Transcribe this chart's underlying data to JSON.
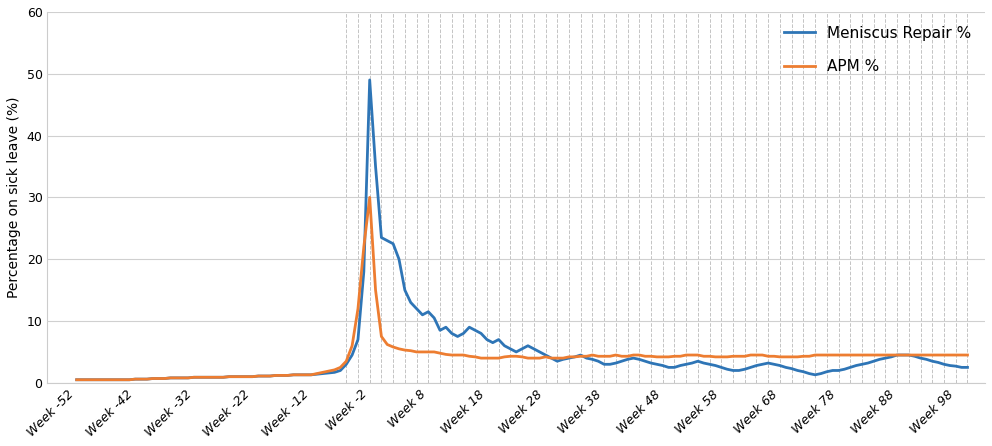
{
  "ylabel": "Percentage on sick leave (%)",
  "ylim": [
    0,
    60
  ],
  "yticks": [
    0,
    10,
    20,
    30,
    40,
    50,
    60
  ],
  "line1_label": "Meniscus Repair %",
  "line2_label": "APM %",
  "line1_color": "#2E75B6",
  "line2_color": "#ED7D31",
  "xtick_labels": [
    "Week -52",
    "Week -42",
    "Week -32",
    "Week -22",
    "Week -12",
    "Week -2",
    "Week 8",
    "Week 18",
    "Week 28",
    "Week 38",
    "Week 48",
    "Week 58",
    "Week 68",
    "Week 78",
    "Week 88",
    "Week 98"
  ],
  "xtick_positions": [
    -52,
    -42,
    -32,
    -22,
    -12,
    -2,
    8,
    18,
    28,
    38,
    48,
    58,
    68,
    78,
    88,
    98
  ],
  "dashed_vline_positions": [
    -6,
    -4,
    -2,
    0,
    2,
    4,
    6,
    8,
    10,
    12,
    14,
    16,
    18,
    20,
    22,
    24,
    26,
    28,
    30,
    32,
    34,
    36,
    38,
    40,
    42,
    44,
    46,
    48,
    50,
    52,
    54,
    56,
    58,
    60,
    62,
    64,
    66,
    68,
    70,
    72,
    74,
    76,
    78,
    80,
    82,
    84,
    86,
    88,
    90,
    92,
    94,
    96,
    98,
    100
  ],
  "meniscus_x": [
    -52,
    -51,
    -50,
    -49,
    -48,
    -47,
    -46,
    -45,
    -44,
    -43,
    -42,
    -41,
    -40,
    -39,
    -38,
    -37,
    -36,
    -35,
    -34,
    -33,
    -32,
    -31,
    -30,
    -29,
    -28,
    -27,
    -26,
    -25,
    -24,
    -23,
    -22,
    -21,
    -20,
    -19,
    -18,
    -17,
    -16,
    -15,
    -14,
    -13,
    -12,
    -11,
    -10,
    -9,
    -8,
    -7,
    -6,
    -5,
    -4,
    -3,
    -2,
    -1,
    0,
    1,
    2,
    3,
    4,
    5,
    6,
    7,
    8,
    9,
    10,
    11,
    12,
    13,
    14,
    15,
    16,
    17,
    18,
    19,
    20,
    21,
    22,
    23,
    24,
    25,
    26,
    27,
    28,
    29,
    30,
    31,
    32,
    33,
    34,
    35,
    36,
    37,
    38,
    39,
    40,
    41,
    42,
    43,
    44,
    45,
    46,
    47,
    48,
    49,
    50,
    51,
    52,
    53,
    54,
    55,
    56,
    57,
    58,
    59,
    60,
    61,
    62,
    63,
    64,
    65,
    66,
    67,
    68,
    69,
    70,
    71,
    72,
    73,
    74,
    75,
    76,
    77,
    78,
    79,
    80,
    81,
    82,
    83,
    84,
    85,
    86,
    87,
    88,
    89,
    90,
    91,
    92,
    93,
    94,
    95,
    96,
    97,
    98,
    99,
    100
  ],
  "meniscus_y": [
    0.5,
    0.5,
    0.5,
    0.5,
    0.5,
    0.5,
    0.5,
    0.5,
    0.5,
    0.5,
    0.6,
    0.6,
    0.6,
    0.7,
    0.7,
    0.7,
    0.8,
    0.8,
    0.8,
    0.8,
    0.9,
    0.9,
    0.9,
    0.9,
    0.9,
    0.9,
    1.0,
    1.0,
    1.0,
    1.0,
    1.0,
    1.1,
    1.1,
    1.1,
    1.2,
    1.2,
    1.2,
    1.3,
    1.3,
    1.3,
    1.3,
    1.4,
    1.5,
    1.6,
    1.7,
    2.0,
    3.0,
    4.5,
    7.0,
    18.0,
    49.0,
    35.0,
    23.5,
    23.0,
    22.5,
    20.0,
    15.0,
    13.0,
    12.0,
    11.0,
    11.5,
    10.5,
    8.5,
    9.0,
    8.0,
    7.5,
    8.0,
    9.0,
    8.5,
    8.0,
    7.0,
    6.5,
    7.0,
    6.0,
    5.5,
    5.0,
    5.5,
    6.0,
    5.5,
    5.0,
    4.5,
    4.0,
    3.5,
    3.8,
    4.0,
    4.2,
    4.5,
    4.0,
    3.8,
    3.5,
    3.0,
    3.0,
    3.2,
    3.5,
    3.8,
    4.0,
    3.8,
    3.5,
    3.2,
    3.0,
    2.8,
    2.5,
    2.5,
    2.8,
    3.0,
    3.2,
    3.5,
    3.2,
    3.0,
    2.8,
    2.5,
    2.2,
    2.0,
    2.0,
    2.2,
    2.5,
    2.8,
    3.0,
    3.2,
    3.0,
    2.8,
    2.5,
    2.3,
    2.0,
    1.8,
    1.5,
    1.3,
    1.5,
    1.8,
    2.0,
    2.0,
    2.2,
    2.5,
    2.8,
    3.0,
    3.2,
    3.5,
    3.8,
    4.0,
    4.2,
    4.5,
    4.5,
    4.5,
    4.3,
    4.0,
    3.8,
    3.5,
    3.3,
    3.0,
    2.8,
    2.7,
    2.5,
    2.5
  ],
  "apm_x": [
    -52,
    -51,
    -50,
    -49,
    -48,
    -47,
    -46,
    -45,
    -44,
    -43,
    -42,
    -41,
    -40,
    -39,
    -38,
    -37,
    -36,
    -35,
    -34,
    -33,
    -32,
    -31,
    -30,
    -29,
    -28,
    -27,
    -26,
    -25,
    -24,
    -23,
    -22,
    -21,
    -20,
    -19,
    -18,
    -17,
    -16,
    -15,
    -14,
    -13,
    -12,
    -11,
    -10,
    -9,
    -8,
    -7,
    -6,
    -5,
    -4,
    -3,
    -2,
    -1,
    0,
    1,
    2,
    3,
    4,
    5,
    6,
    7,
    8,
    9,
    10,
    11,
    12,
    13,
    14,
    15,
    16,
    17,
    18,
    19,
    20,
    21,
    22,
    23,
    24,
    25,
    26,
    27,
    28,
    29,
    30,
    31,
    32,
    33,
    34,
    35,
    36,
    37,
    38,
    39,
    40,
    41,
    42,
    43,
    44,
    45,
    46,
    47,
    48,
    49,
    50,
    51,
    52,
    53,
    54,
    55,
    56,
    57,
    58,
    59,
    60,
    61,
    62,
    63,
    64,
    65,
    66,
    67,
    68,
    69,
    70,
    71,
    72,
    73,
    74,
    75,
    76,
    77,
    78,
    79,
    80,
    81,
    82,
    83,
    84,
    85,
    86,
    87,
    88,
    89,
    90,
    91,
    92,
    93,
    94,
    95,
    96,
    97,
    98,
    99,
    100
  ],
  "apm_y": [
    0.5,
    0.5,
    0.5,
    0.5,
    0.5,
    0.5,
    0.5,
    0.5,
    0.5,
    0.5,
    0.6,
    0.6,
    0.6,
    0.7,
    0.7,
    0.7,
    0.8,
    0.8,
    0.8,
    0.8,
    0.9,
    0.9,
    0.9,
    0.9,
    0.9,
    0.9,
    1.0,
    1.0,
    1.0,
    1.0,
    1.0,
    1.1,
    1.1,
    1.1,
    1.2,
    1.2,
    1.2,
    1.3,
    1.3,
    1.3,
    1.3,
    1.5,
    1.7,
    1.9,
    2.1,
    2.5,
    3.5,
    6.0,
    12.0,
    22.0,
    30.0,
    15.0,
    7.5,
    6.2,
    5.8,
    5.5,
    5.3,
    5.2,
    5.0,
    5.0,
    5.0,
    5.0,
    4.8,
    4.6,
    4.5,
    4.5,
    4.5,
    4.3,
    4.2,
    4.0,
    4.0,
    4.0,
    4.0,
    4.2,
    4.3,
    4.3,
    4.2,
    4.0,
    4.0,
    4.0,
    4.2,
    4.0,
    4.0,
    4.0,
    4.2,
    4.2,
    4.3,
    4.3,
    4.5,
    4.3,
    4.3,
    4.3,
    4.5,
    4.3,
    4.3,
    4.5,
    4.5,
    4.3,
    4.3,
    4.2,
    4.2,
    4.2,
    4.3,
    4.3,
    4.5,
    4.5,
    4.5,
    4.3,
    4.3,
    4.2,
    4.2,
    4.2,
    4.3,
    4.3,
    4.3,
    4.5,
    4.5,
    4.5,
    4.3,
    4.3,
    4.2,
    4.2,
    4.2,
    4.2,
    4.3,
    4.3,
    4.5,
    4.5,
    4.5,
    4.5,
    4.5,
    4.5,
    4.5,
    4.5,
    4.5,
    4.5,
    4.5,
    4.5,
    4.5,
    4.5,
    4.5,
    4.5,
    4.5,
    4.5,
    4.5,
    4.5,
    4.5,
    4.5,
    4.5,
    4.5,
    4.5,
    4.5,
    4.5
  ]
}
